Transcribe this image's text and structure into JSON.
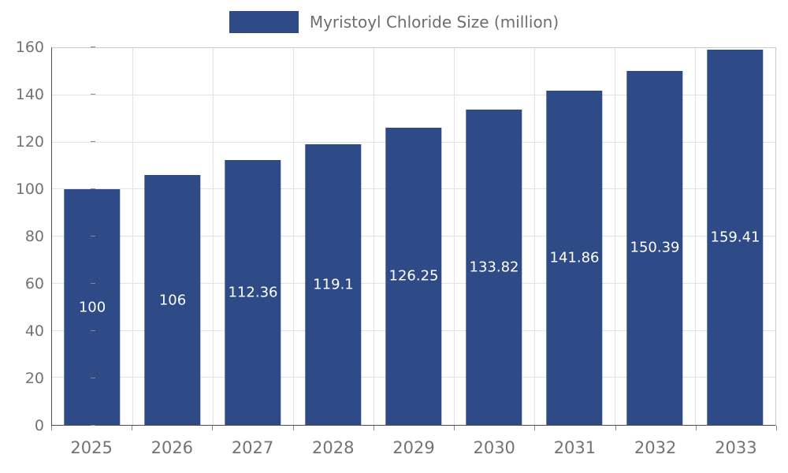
{
  "chart_data": {
    "type": "bar",
    "title": "",
    "legend_label": "Myristoyl Chloride Size (million)",
    "categories": [
      "2025",
      "2026",
      "2027",
      "2028",
      "2029",
      "2030",
      "2031",
      "2032",
      "2033"
    ],
    "values": [
      100,
      106,
      112.36,
      119.1,
      126.25,
      133.82,
      141.86,
      150.39,
      159.41
    ],
    "value_labels": [
      "100",
      "106",
      "112.36",
      "119.1",
      "126.25",
      "133.82",
      "141.86",
      "150.39",
      "159.41"
    ],
    "xlabel": "",
    "ylabel": "",
    "ylim": [
      0,
      160
    ],
    "yticks": [
      0,
      20,
      40,
      60,
      80,
      100,
      120,
      140,
      160
    ],
    "grid": true,
    "legend_position": "top",
    "bar_color": "#2e4a87",
    "value_label_color": "#ffffff",
    "axis_text_color": "#737373"
  }
}
